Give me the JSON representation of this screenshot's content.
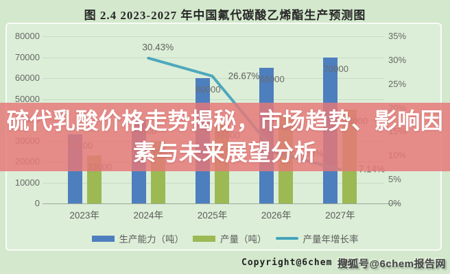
{
  "title": "图 2.4 2023-2027 年中国氟代碳酸乙烯酯生产预测图",
  "overlay_banner": {
    "line1": "硫代乳酸价格走势揭秘，市场趋势、影响因",
    "line2": "素与未来展望分析"
  },
  "footer": {
    "copyright": "Copyright@6chem Inc",
    "watermark": "搜狐号@6chem报告网"
  },
  "colors": {
    "background": "#d3e8cc",
    "panel": "#dceed7",
    "capacity_bar": "#4d7ebe",
    "output_bar": "#9cb954",
    "growth_line": "#45a3bb",
    "overlay_banner": "#e67878"
  },
  "chart_data": {
    "type": "bar",
    "subtype": "grouped-bars-with-line-dual-axis",
    "title": "图 2.4 2023-2027 年中国氟代碳酸乙烯酯生产预测图",
    "categories": [
      "2023年",
      "2024年",
      "2025年",
      "2026年",
      "2027年"
    ],
    "series": [
      {
        "name": "生产能力（吨）",
        "type": "bar",
        "axis": "left",
        "color": "#4d7ebe",
        "values": [
          33000,
          40000,
          60000,
          65000,
          70000
        ]
      },
      {
        "name": "产量（吨）",
        "type": "bar",
        "axis": "left",
        "color": "#9cb954",
        "values": [
          23000,
          30000,
          38000,
          42000,
          45000
        ]
      },
      {
        "name": "产量年增长率",
        "type": "line",
        "axis": "right",
        "color": "#45a3bb",
        "values": [
          null,
          30.43,
          26.67,
          10.53,
          7.14
        ],
        "labels": [
          "",
          "30.43%",
          "26.67%",
          "10.53%",
          "7.14%"
        ]
      }
    ],
    "left_axis": {
      "min": 0,
      "max": 80000,
      "step": 10000,
      "ticks": [
        "0",
        "10000",
        "20000",
        "30000",
        "40000",
        "50000",
        "60000",
        "70000",
        "80000"
      ]
    },
    "right_axis": {
      "min": 0,
      "max": 35,
      "step": 5,
      "ticks": [
        "0%",
        "5%",
        "10%",
        "15%",
        "20%",
        "25%",
        "30%",
        "35%"
      ]
    },
    "grid": true,
    "legend_position": "bottom"
  }
}
